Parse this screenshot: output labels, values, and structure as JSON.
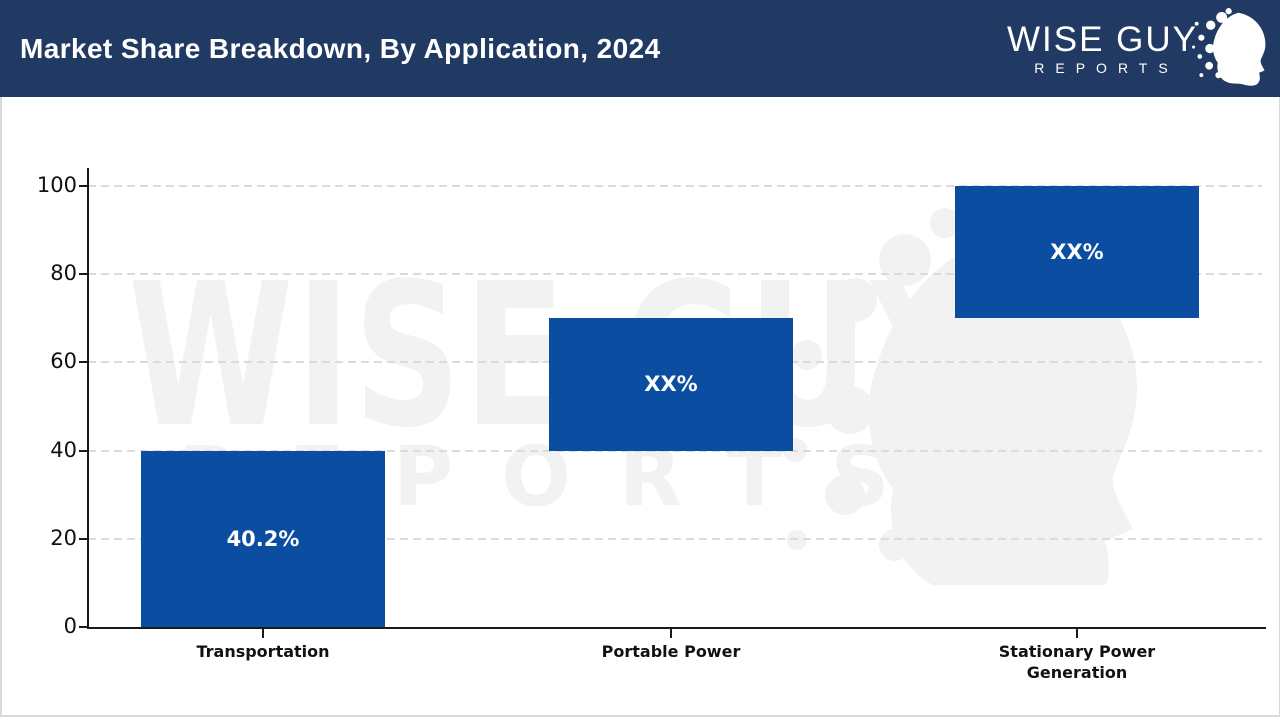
{
  "header": {
    "title": "Market Share Breakdown, By Application, 2024",
    "logo": {
      "line1": "WISE GUY",
      "line2": "REPORTS"
    }
  },
  "watermark": {
    "line1": "WISE GUY",
    "line2": "REPORTS"
  },
  "chart_data": {
    "type": "bar",
    "variant": "floating-range-waterfall",
    "title": "Market Share Breakdown, By Application, 2024",
    "categories": [
      "Transportation",
      "Portable Power",
      "Stationary Power Generation"
    ],
    "series": [
      {
        "name": "Market Share (%)",
        "ranges": [
          [
            0,
            40
          ],
          [
            40,
            70
          ],
          [
            70,
            100
          ]
        ],
        "value_labels": [
          "40.2%",
          "XX%",
          "XX%"
        ]
      }
    ],
    "ylim": [
      0,
      100
    ],
    "yticks": [
      0,
      20,
      40,
      60,
      80,
      100
    ],
    "grid": "horizontal-dashed",
    "legend": "none",
    "bar_color": "#0B4DA1",
    "value_label_color": "#FFFFFF"
  },
  "colors": {
    "header_bg": "#203A64",
    "bar": "#0B4DA1",
    "grid": "#DBDBDB",
    "axis": "#1A1A1A",
    "watermark": "#F2F2F3"
  }
}
